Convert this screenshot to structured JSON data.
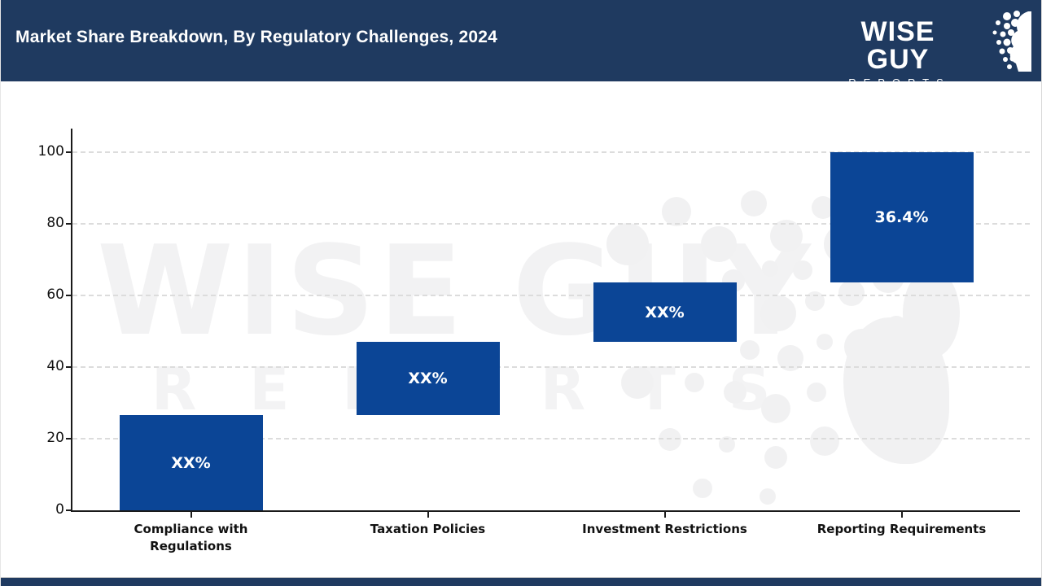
{
  "header": {
    "title": "Market Share Breakdown, By Regulatory Challenges, 2024",
    "logo": {
      "primary": "WISE GUY",
      "secondary": "REPORTS"
    }
  },
  "watermark": {
    "primary": "WISE GUY",
    "secondary": "REPORTS"
  },
  "colors": {
    "header_bg": "#1f3a60",
    "bar": "#0b4596",
    "grid": "#dcdcdc",
    "axis": "#1a1a1a",
    "bar_label": "#ffffff",
    "watermark": "#f1f1f2"
  },
  "chart_data": {
    "type": "bar",
    "variant": "floating-waterfall",
    "title": "Market Share Breakdown, By Regulatory Challenges, 2024",
    "categories": [
      "Compliance with Regulations",
      "Taxation Policies",
      "Investment Restrictions",
      "Reporting Requirements"
    ],
    "bars": [
      {
        "category": "Compliance with Regulations",
        "start": 0,
        "end": 26.5,
        "label": "XX%"
      },
      {
        "category": "Taxation Policies",
        "start": 26.5,
        "end": 47,
        "label": "XX%"
      },
      {
        "category": "Investment Restrictions",
        "start": 47,
        "end": 63.6,
        "label": "XX%"
      },
      {
        "category": "Reporting Requirements",
        "start": 63.6,
        "end": 100,
        "label": "36.4%"
      }
    ],
    "xlabel": "",
    "ylabel": "",
    "yticks": [
      0,
      20,
      40,
      60,
      80,
      100
    ],
    "ylim": [
      0,
      107
    ],
    "grid": "horizontal-dashed",
    "legend": "none",
    "bar_color": "#0b4596",
    "label_color": "#ffffff"
  }
}
